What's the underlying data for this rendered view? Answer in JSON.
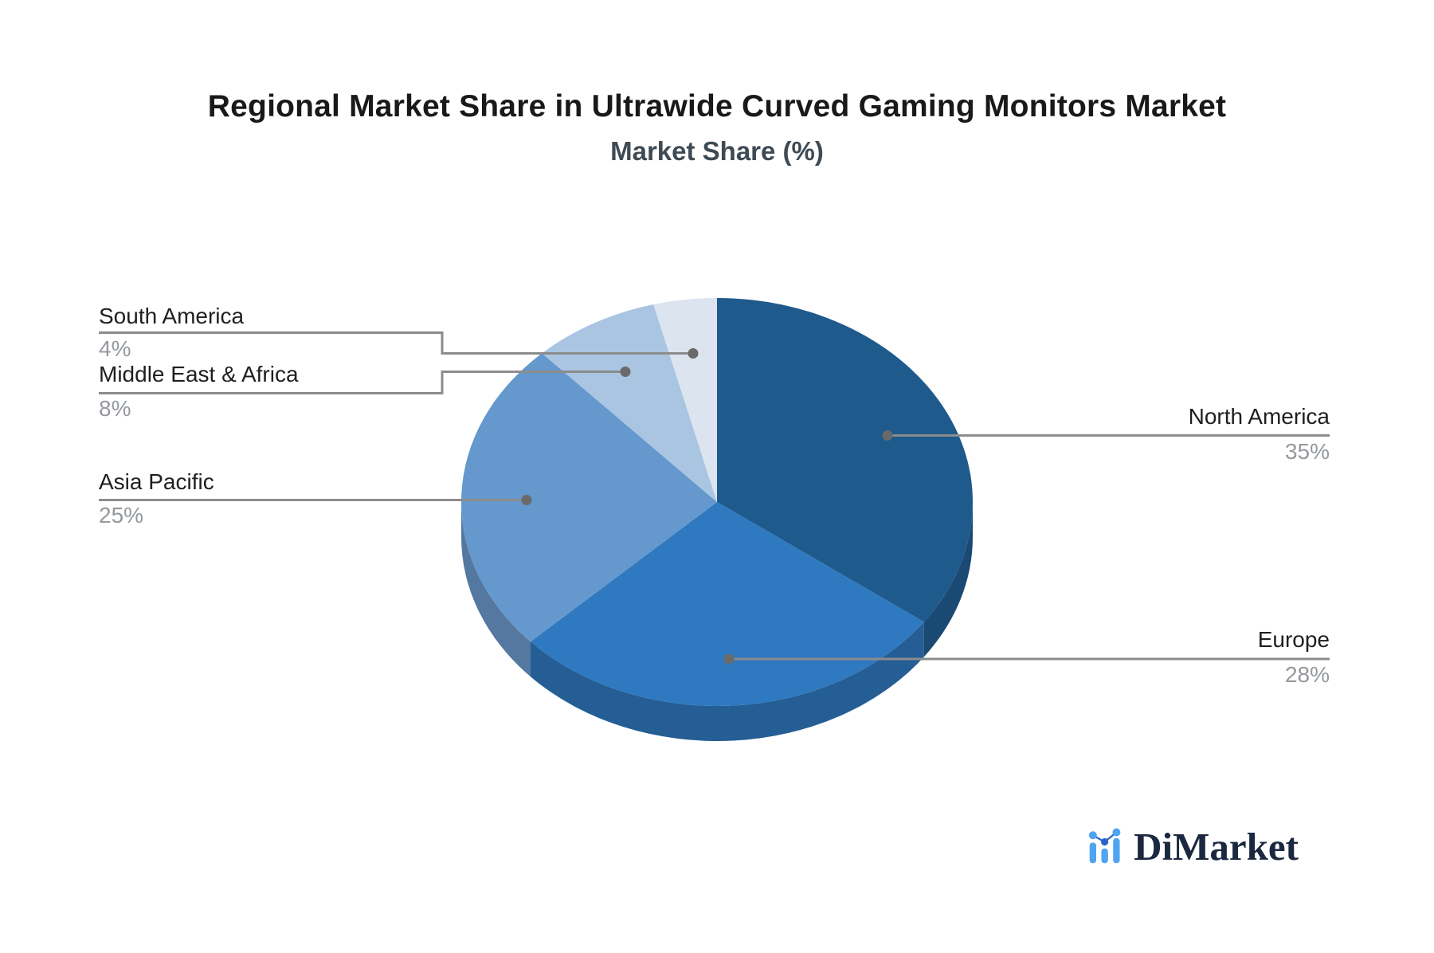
{
  "chart_data": {
    "type": "pie",
    "title": "Regional Market Share in Ultrawide Curved Gaming Monitors Market",
    "subtitle": "Market Share (%)",
    "unit": "percent",
    "effect": "3d",
    "direction": "clockwise",
    "start_angle_deg": 0,
    "legend_position": "none",
    "slices": [
      {
        "label": "North America",
        "value": 35,
        "pct_label": "35%",
        "color": "#1E5A8C",
        "side_color": "#1A4A73",
        "label_side": "right"
      },
      {
        "label": "Europe",
        "value": 28,
        "pct_label": "28%",
        "color": "#2E79C0",
        "side_color": "#245E94",
        "label_side": "right"
      },
      {
        "label": "Asia Pacific",
        "value": 25,
        "pct_label": "25%",
        "color": "#6598CD",
        "side_color": "#54789F",
        "label_side": "left"
      },
      {
        "label": "Middle East & Africa",
        "value": 8,
        "pct_label": "8%",
        "color": "#A9C5E2",
        "side_color": "#8FA6BC",
        "label_side": "left"
      },
      {
        "label": "South America",
        "value": 4,
        "pct_label": "4%",
        "color": "#DBE4EF",
        "side_color": "#B6BEC9",
        "label_side": "left"
      }
    ],
    "text_colors": {
      "label": "#1F1F1F",
      "percent": "#95999E"
    },
    "connector_color": "#8C8C8C",
    "anchor_dot_color": "#6A6A6A"
  },
  "logo": {
    "text": "DiMarket",
    "icon": "bar-line-chart-icon",
    "text_color": "#1B2840",
    "bar_color": "#4FA4F2",
    "accent_color": "#2C63C8"
  }
}
